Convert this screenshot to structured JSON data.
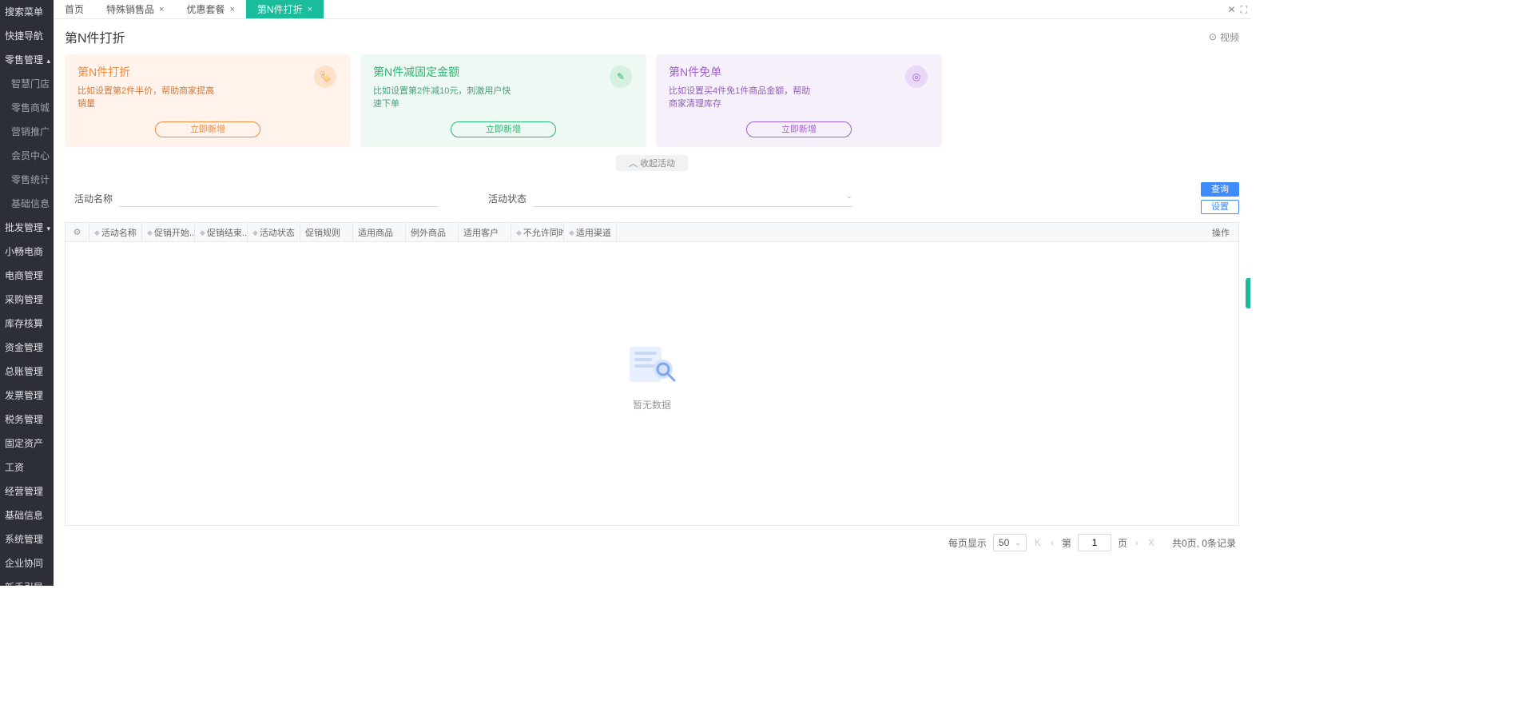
{
  "sidebar": {
    "search": "搜索菜单",
    "quicknav": "快捷导航",
    "retail_mgmt": "零售管理",
    "retail_sub": [
      "智慧门店",
      "零售商城",
      "营销推广",
      "会员中心",
      "零售统计",
      "基础信息"
    ],
    "wholesale_mgmt": "批发管理",
    "rest": [
      "小畅电商",
      "电商管理",
      "采购管理",
      "库存核算",
      "资金管理",
      "总账管理",
      "发票管理",
      "税务管理",
      "固定资产",
      "工资",
      "经营管理",
      "基础信息",
      "系统管理",
      "企业协同",
      "新手引导"
    ]
  },
  "tabs": [
    {
      "label": "首页",
      "closable": false,
      "active": false
    },
    {
      "label": "特殊销售品",
      "closable": true,
      "active": false
    },
    {
      "label": "优惠套餐",
      "closable": true,
      "active": false
    },
    {
      "label": "第N件打折",
      "closable": true,
      "active": true
    }
  ],
  "page": {
    "title": "第N件打折",
    "video": "视频"
  },
  "cards": [
    {
      "title": "第N件打折",
      "desc": "比如设置第2件半价，帮助商家提高销量",
      "btn": "立即新增",
      "icon": "🏷️"
    },
    {
      "title": "第N件减固定金额",
      "desc": "比如设置第2件减10元，刺激用户快速下单",
      "btn": "立即新增",
      "icon": "✎"
    },
    {
      "title": "第N件免单",
      "desc": "比如设置买4件免1件商品金额，帮助商家清理库存",
      "btn": "立即新增",
      "icon": "◎"
    }
  ],
  "collapse": "收起活动",
  "filters": {
    "name_label": "活动名称",
    "status_label": "活动状态",
    "query": "查询",
    "settings": "设置"
  },
  "columns": [
    "活动名称",
    "促销开始...",
    "促销结束...",
    "活动状态",
    "促销规则",
    "适用商品",
    "例外商品",
    "适用客户",
    "不允许同时...",
    "适用渠道"
  ],
  "ops_col": "操作",
  "empty_text": "暂无数据",
  "pager": {
    "per_page_label": "每页显示",
    "per_page": "50",
    "page_char": "第",
    "page_val": "1",
    "page_suffix": "页",
    "summary": "共0页, 0条记录"
  }
}
